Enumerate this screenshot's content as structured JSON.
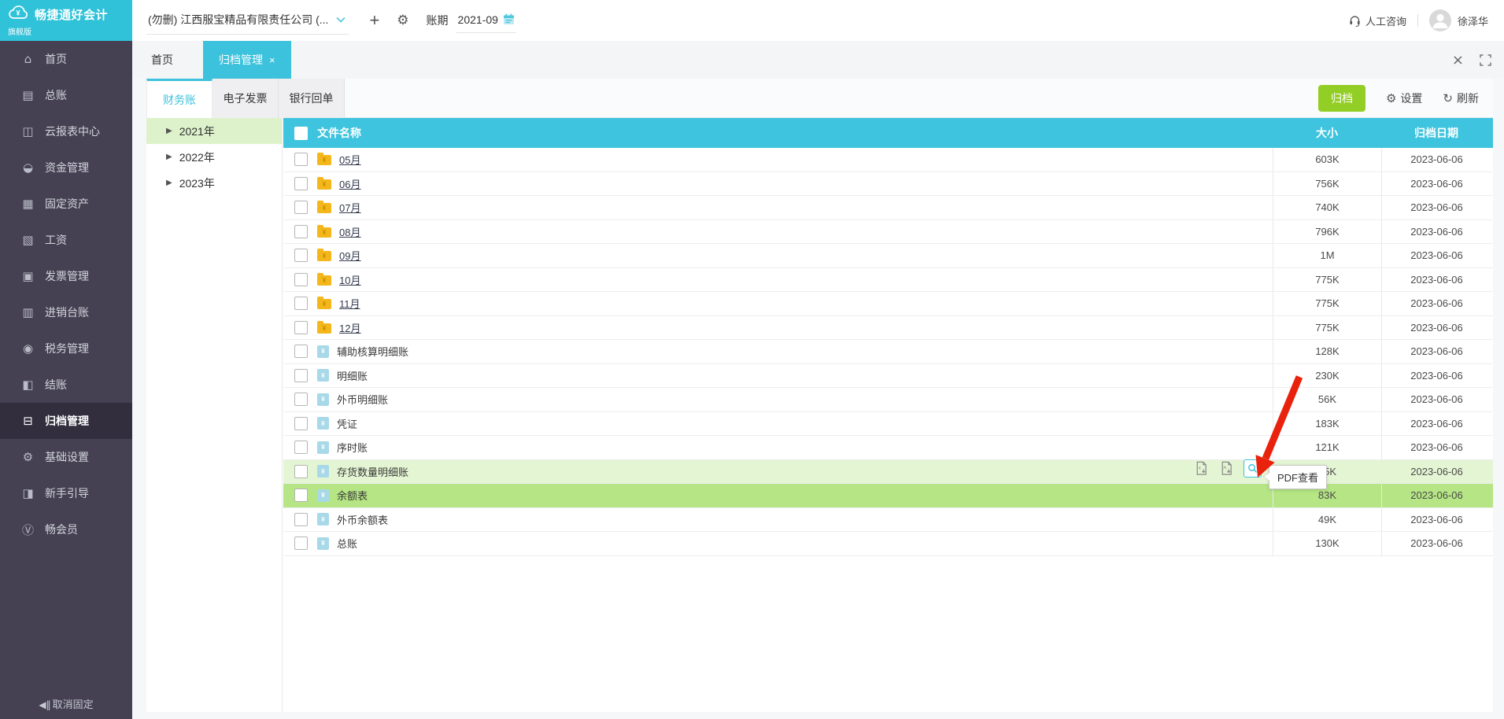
{
  "colors": {
    "accent_cyan": "#3cc2dc",
    "sidebar_bg": "#464152",
    "sidebar_active_bg": "#322e3e",
    "archive_button_green": "#93ce26",
    "row_highlight_light": "#e4f5d3",
    "row_highlight_strong": "#b5e584",
    "tree_selected_green": "#ddf2cb",
    "annotation_arrow_red": "#e8220c",
    "folder_icon_yellow": "#f3b71c",
    "file_icon_blue": "#a7d9e9"
  },
  "brand": {
    "title": "畅捷通好会计",
    "edition": "旗舰版"
  },
  "topbar": {
    "company": "(勿删) 江西服宝精品有限责任公司 (...",
    "period_label": "账期",
    "period_value": "2021-09",
    "support_label": "人工咨询",
    "username": "徐泽华"
  },
  "tabs": [
    {
      "label": "首页",
      "active": false,
      "closable": false
    },
    {
      "label": "归档管理",
      "active": true,
      "closable": true,
      "close_glyph": "×"
    }
  ],
  "sidebar": {
    "items": [
      {
        "icon": "home-icon",
        "glyph": "⌂",
        "label": "首页",
        "active": false
      },
      {
        "icon": "general-ledger-icon",
        "glyph": "▤",
        "label": "总账",
        "active": false
      },
      {
        "icon": "cloud-report-icon",
        "glyph": "◫",
        "label": "云报表中心",
        "active": false
      },
      {
        "icon": "funds-icon",
        "glyph": "◒",
        "label": "资金管理",
        "active": false
      },
      {
        "icon": "fixed-assets-icon",
        "glyph": "▦",
        "label": "固定资产",
        "active": false
      },
      {
        "icon": "payroll-icon",
        "glyph": "▧",
        "label": "工资",
        "active": false
      },
      {
        "icon": "invoice-icon",
        "glyph": "▣",
        "label": "发票管理",
        "active": false
      },
      {
        "icon": "purchase-sales-icon",
        "glyph": "▥",
        "label": "进销台账",
        "active": false
      },
      {
        "icon": "tax-icon",
        "glyph": "◉",
        "label": "税务管理",
        "active": false
      },
      {
        "icon": "closing-icon",
        "glyph": "◧",
        "label": "结账",
        "active": false
      },
      {
        "icon": "archive-icon",
        "glyph": "⊟",
        "label": "归档管理",
        "active": true
      },
      {
        "icon": "base-settings-icon",
        "glyph": "⚙",
        "label": "基础设置",
        "active": false
      },
      {
        "icon": "guide-icon",
        "glyph": "◨",
        "label": "新手引导",
        "active": false
      },
      {
        "icon": "member-icon",
        "glyph": "Ⓥ",
        "label": "畅会员",
        "active": false
      }
    ],
    "unpin_label": "取消固定",
    "unpin_glyph": "◀‖"
  },
  "subtabs": [
    {
      "label": "财务账",
      "active": true
    },
    {
      "label": "电子发票",
      "active": false
    },
    {
      "label": "银行回单",
      "active": false
    }
  ],
  "toolbar": {
    "archive_label": "归档",
    "settings_label": "设置",
    "refresh_label": "刷新",
    "refresh_glyph": "↻",
    "settings_glyph": "⚙"
  },
  "tree": [
    {
      "label": "2021年",
      "selected": true
    },
    {
      "label": "2022年",
      "selected": false
    },
    {
      "label": "2023年",
      "selected": false
    }
  ],
  "table": {
    "header": {
      "name": "文件名称",
      "size": "大小",
      "date": "归档日期"
    },
    "rows": [
      {
        "name": "05月",
        "type": "folder",
        "link": true,
        "size": "603K",
        "date": "2023-06-06",
        "highlight": null
      },
      {
        "name": "06月",
        "type": "folder",
        "link": true,
        "size": "756K",
        "date": "2023-06-06",
        "highlight": null
      },
      {
        "name": "07月",
        "type": "folder",
        "link": true,
        "size": "740K",
        "date": "2023-06-06",
        "highlight": null
      },
      {
        "name": "08月",
        "type": "folder",
        "link": true,
        "size": "796K",
        "date": "2023-06-06",
        "highlight": null
      },
      {
        "name": "09月",
        "type": "folder",
        "link": true,
        "size": "1M",
        "date": "2023-06-06",
        "highlight": null
      },
      {
        "name": "10月",
        "type": "folder",
        "link": true,
        "size": "775K",
        "date": "2023-06-06",
        "highlight": null
      },
      {
        "name": "11月",
        "type": "folder",
        "link": true,
        "size": "775K",
        "date": "2023-06-06",
        "highlight": null
      },
      {
        "name": "12月",
        "type": "folder",
        "link": true,
        "size": "775K",
        "date": "2023-06-06",
        "highlight": null
      },
      {
        "name": "辅助核算明细账",
        "type": "file",
        "link": false,
        "size": "128K",
        "date": "2023-06-06",
        "highlight": null
      },
      {
        "name": "明细账",
        "type": "file",
        "link": false,
        "size": "230K",
        "date": "2023-06-06",
        "highlight": null
      },
      {
        "name": "外币明细账",
        "type": "file",
        "link": false,
        "size": "56K",
        "date": "2023-06-06",
        "highlight": null
      },
      {
        "name": "凭证",
        "type": "file",
        "link": false,
        "size": "183K",
        "date": "2023-06-06",
        "highlight": null
      },
      {
        "name": "序时账",
        "type": "file",
        "link": false,
        "size": "121K",
        "date": "2023-06-06",
        "highlight": null
      },
      {
        "name": "存货数量明细账",
        "type": "file",
        "link": false,
        "size": "85K",
        "date": "2023-06-06",
        "highlight": "light",
        "actions": true
      },
      {
        "name": "余额表",
        "type": "file",
        "link": false,
        "size": "83K",
        "date": "2023-06-06",
        "highlight": "strong"
      },
      {
        "name": "外币余额表",
        "type": "file",
        "link": false,
        "size": "49K",
        "date": "2023-06-06",
        "highlight": null
      },
      {
        "name": "总账",
        "type": "file",
        "link": false,
        "size": "130K",
        "date": "2023-06-06",
        "highlight": null
      }
    ]
  },
  "row_actions": {
    "tooltip": "PDF查看"
  }
}
